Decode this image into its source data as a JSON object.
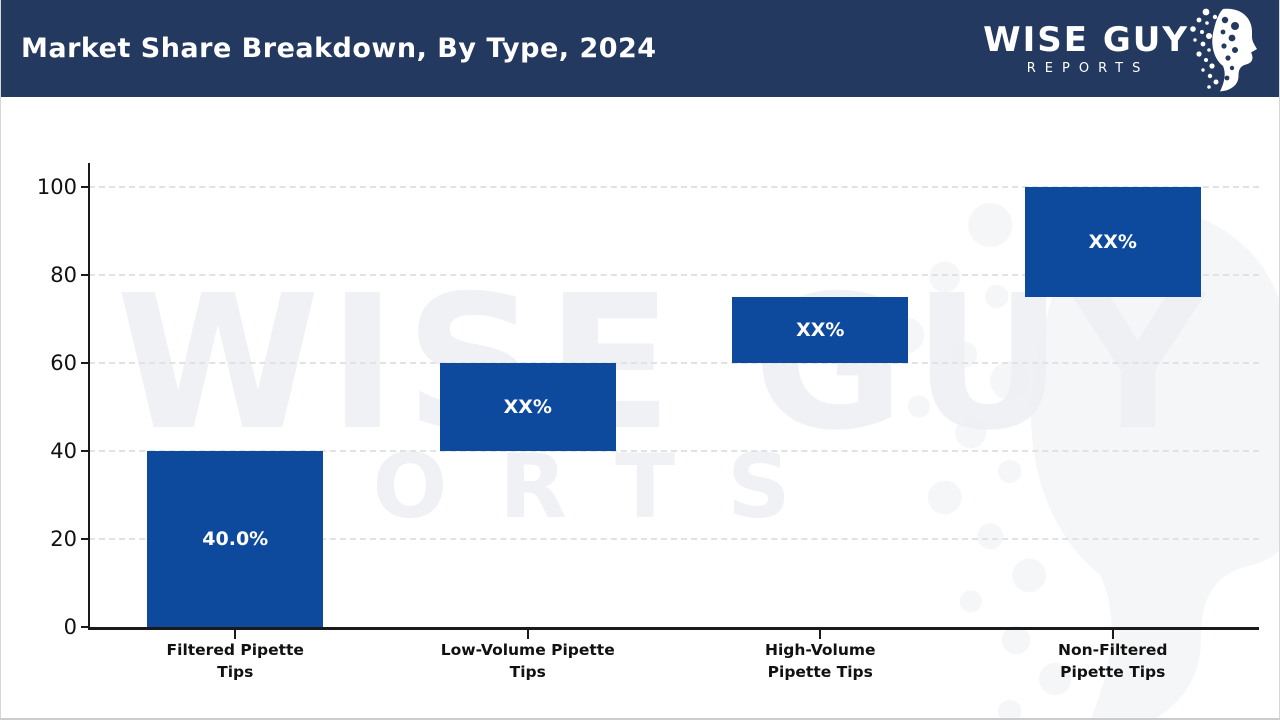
{
  "header": {
    "title": "Market Share Breakdown, By Type, 2024"
  },
  "logo": {
    "name": "Wise Guy Reports",
    "line1": "WISE GUY",
    "line2": "REPORTS",
    "face_icon": "dotted-head-profile"
  },
  "watermark": {
    "line1": "WISE GUY",
    "line2": "PORTS"
  },
  "colors": {
    "header_bg": "#24395f",
    "bar": "#0d4a9e",
    "grid": "#e2e2e2",
    "axis": "#1a1a1a",
    "watermark": "#f0f1f4",
    "bar_label": "#ffffff",
    "title_text": "#ffffff"
  },
  "chart_data": {
    "type": "bar",
    "subtype": "waterfall",
    "title": "Market Share Breakdown, By Type, 2024",
    "xlabel": "",
    "ylabel": "",
    "ylim": [
      0,
      105
    ],
    "yticks": [
      0,
      20,
      40,
      60,
      80,
      100
    ],
    "grid": "horizontal-dashed",
    "legend": "none",
    "categories": [
      "Filtered Pipette\nTips",
      "Low-Volume Pipette\nTips",
      "High-Volume\nPipette Tips",
      "Non-Filtered\nPipette Tips"
    ],
    "segments": [
      {
        "category": "Filtered Pipette Tips",
        "start": 0,
        "end": 40,
        "value": 40,
        "label": "40.0%"
      },
      {
        "category": "Low-Volume Pipette Tips",
        "start": 40,
        "end": 60,
        "value": 20,
        "label": "XX%"
      },
      {
        "category": "High-Volume Pipette Tips",
        "start": 60,
        "end": 75,
        "value": 15,
        "label": "XX%"
      },
      {
        "category": "Non-Filtered Pipette Tips",
        "start": 75,
        "end": 100,
        "value": 25,
        "label": "XX%"
      }
    ]
  }
}
